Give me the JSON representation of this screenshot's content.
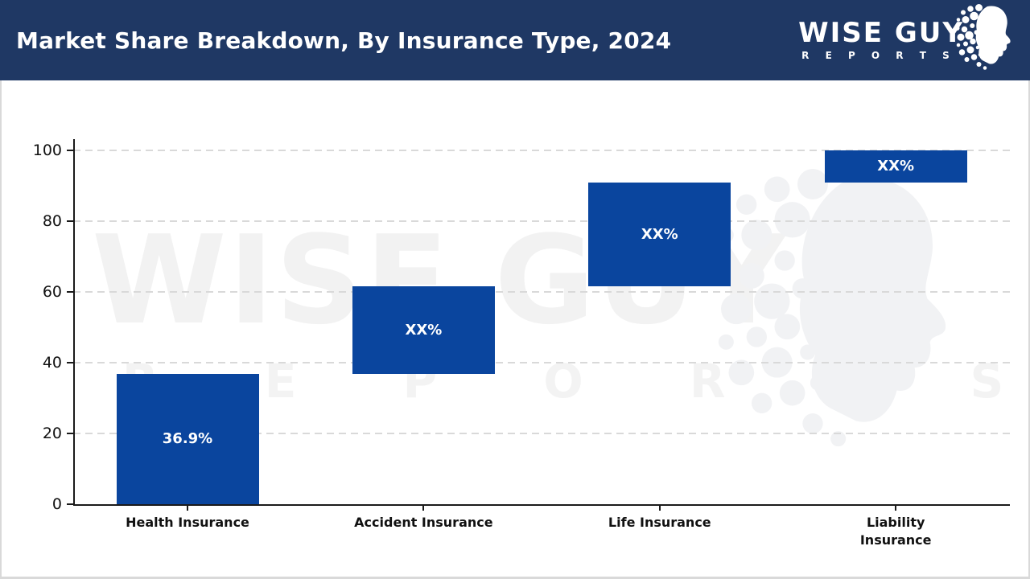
{
  "header": {
    "title": "Market Share Breakdown, By Insurance Type, 2024",
    "brand": {
      "name": "WISE GUY",
      "sub": "R E P O R T S"
    }
  },
  "watermark": {
    "line1": "WISE GUY",
    "line2": "R E P O R T S"
  },
  "colors": {
    "header_bg": "#1f3864",
    "bar": "#0a459e",
    "bar_label": "#ffffff",
    "gridline": "#d9d9d9",
    "axis": "#1a1a1a",
    "watermark": "#f2f2f2"
  },
  "chart_data": {
    "type": "bar",
    "subtype": "waterfall",
    "title": "Market Share Breakdown, By Insurance Type, 2024",
    "categories": [
      "Health Insurance",
      "Accident Insurance",
      "Life Insurance",
      "Liability Insurance"
    ],
    "tick_labels": [
      "Health Insurance",
      "Accident Insurance",
      "Life Insurance",
      "Liability\nInsurance"
    ],
    "segments": [
      {
        "category": "Health Insurance",
        "start": 0,
        "end": 36.9,
        "label": "36.9%"
      },
      {
        "category": "Accident Insurance",
        "start": 36.9,
        "end": 61.5,
        "label": "XX%"
      },
      {
        "category": "Life Insurance",
        "start": 61.5,
        "end": 91.0,
        "label": "XX%"
      },
      {
        "category": "Liability Insurance",
        "start": 91.0,
        "end": 100.0,
        "label": "XX%"
      }
    ],
    "xlabel": "",
    "ylabel": "",
    "ylim": [
      0,
      100
    ],
    "yticks": [
      0,
      20,
      40,
      60,
      80,
      100
    ],
    "grid": "horizontal-dashed",
    "legend": "none"
  }
}
